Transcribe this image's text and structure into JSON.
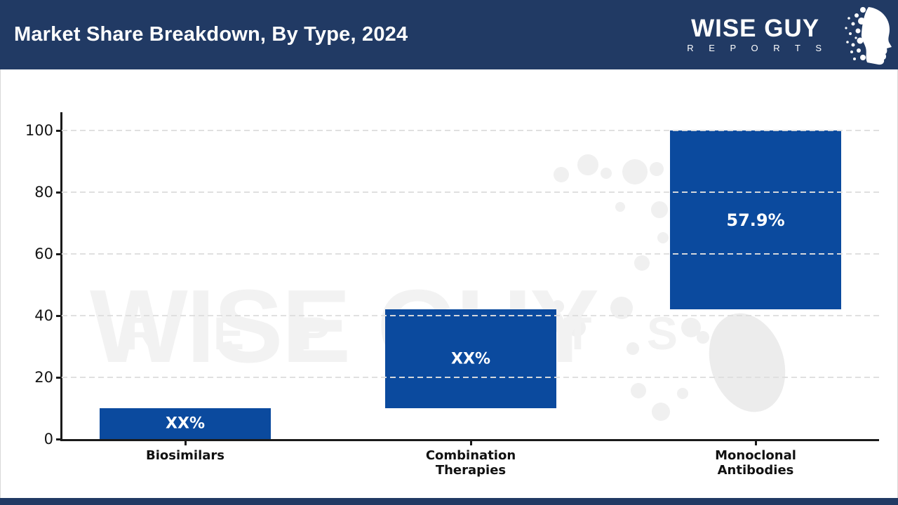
{
  "header": {
    "title": "Market Share Breakdown, By Type, 2024",
    "logo": {
      "wordmark": "WISE GUY",
      "subtext": "R E P O R T S"
    }
  },
  "watermark": {
    "line1": "WISE GUY",
    "line2": "R E P O R T S"
  },
  "chart_data": {
    "type": "bar",
    "subtype": "waterfall",
    "title": "Market Share Breakdown, By Type, 2024",
    "categories": [
      "Biosimilars",
      "Combination Therapies",
      "Monoclonal Antibodies"
    ],
    "category_label_lines": [
      [
        "Biosimilars"
      ],
      [
        "Combination",
        "Therapies"
      ],
      [
        "Monoclonal",
        "Antibodies"
      ]
    ],
    "bars": [
      {
        "name": "Biosimilars",
        "start": 0,
        "end": 10,
        "label": "XX%"
      },
      {
        "name": "Combination Therapies",
        "start": 10,
        "end": 42,
        "label": "XX%"
      },
      {
        "name": "Monoclonal Antibodies",
        "start": 42,
        "end": 100,
        "label": "57.9%"
      }
    ],
    "yticks": [
      0,
      20,
      40,
      60,
      80,
      100
    ],
    "ylim": [
      0,
      106
    ],
    "xlabel": "",
    "ylabel": "",
    "grid": "horizontal-dashed-above-bars",
    "legend": "none"
  },
  "colors": {
    "header_bg": "#213a64",
    "footer_bg": "#213a64",
    "bar": "#0b4a9e",
    "grid": "#dedede",
    "axis": "#1a1a1a",
    "tick_text": "#141414",
    "bar_label_text": "#ffffff",
    "watermark": "#f2f2f2",
    "page_border": "#d8d8d8"
  }
}
